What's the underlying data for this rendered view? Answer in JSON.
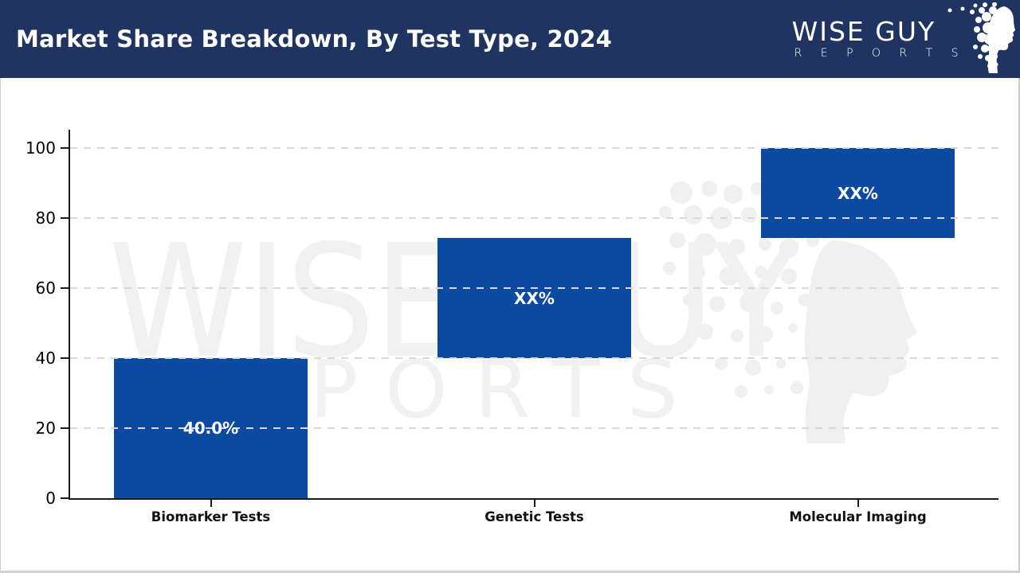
{
  "header": {
    "title": "Market Share Breakdown, By Test Type, 2024",
    "background_color": "#203462"
  },
  "logo": {
    "line1": "WISE GUY",
    "line2": "R E P O R T S"
  },
  "watermark": {
    "line1": "WISE GUY",
    "line2": "REPORTS",
    "color": "#f1f1f1"
  },
  "chart_data": {
    "type": "bar",
    "subtype": "stacked-waterfall",
    "title": "Market Share Breakdown, By Test Type, 2024",
    "categories": [
      "Biomarker Tests",
      "Genetic Tests",
      "Molecular Imaging"
    ],
    "segments": [
      {
        "category": "Biomarker Tests",
        "label": "40.0%",
        "start": 0,
        "end": 40
      },
      {
        "category": "Genetic Tests",
        "label": "XX%",
        "start": 40,
        "end": 74.3
      },
      {
        "category": "Molecular Imaging",
        "label": "XX%",
        "start": 74.3,
        "end": 100
      }
    ],
    "values": [
      40,
      34.3,
      25.7
    ],
    "xlabel": "",
    "ylabel": "",
    "ylim": [
      0,
      100
    ],
    "yticks": [
      0,
      20,
      40,
      60,
      80,
      100
    ],
    "grid": "horizontal-dashed-over-bars",
    "legend": "none",
    "bar_color": "#0b4aa0",
    "bar_label_color": "#ffffff"
  }
}
